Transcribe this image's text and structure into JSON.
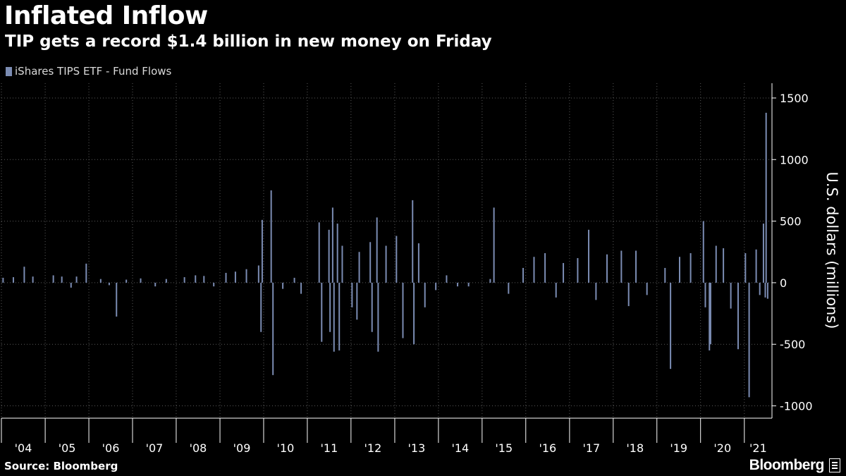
{
  "title": "Inflated Inflow",
  "subtitle": "TIP gets a record $1.4 billion in new money on Friday",
  "legend_label": "iShares TIPS ETF - Fund Flows",
  "source": "Source: Bloomberg",
  "logo_text": "Bloomberg",
  "colors": {
    "series": "#7b8cb3",
    "background": "#000000",
    "grid": "#5a5a5a",
    "text": "#ffffff"
  },
  "chart_data": {
    "type": "bar",
    "ylabel": "U.S. dollars (millions)",
    "ylim": [
      -1100,
      1620
    ],
    "xlim": [
      "2004-01-01",
      "2021-08-20"
    ],
    "y_ticks": [
      1500,
      1000,
      500,
      0,
      -500,
      -1000
    ],
    "y_tick_labels": [
      "1500",
      "1000",
      "500",
      "0",
      "-500",
      "-1000"
    ],
    "x_tick_labels": [
      "'04",
      "'05",
      "'06",
      "'07",
      "'08",
      "'09",
      "'10",
      "'11",
      "'12",
      "'13",
      "'14",
      "'15",
      "'16",
      "'17",
      "'18",
      "'19",
      "'20",
      "'21"
    ],
    "x_tick_dates": [
      "2004-01-01",
      "2005-01-01",
      "2006-01-01",
      "2007-01-01",
      "2008-01-01",
      "2009-01-01",
      "2010-01-01",
      "2011-01-01",
      "2012-01-01",
      "2013-01-01",
      "2014-01-01",
      "2015-01-01",
      "2016-01-01",
      "2017-01-01",
      "2018-01-01",
      "2019-01-01",
      "2020-01-01",
      "2021-01-01"
    ],
    "grid": true,
    "legend_position": "top-left",
    "series": [
      {
        "name": "iShares TIPS ETF - Fund Flows",
        "points": [
          [
            "2004-01-15",
            40
          ],
          [
            "2004-04-10",
            45
          ],
          [
            "2004-07-10",
            130
          ],
          [
            "2004-09-20",
            50
          ],
          [
            "2005-03-10",
            60
          ],
          [
            "2005-05-20",
            50
          ],
          [
            "2005-08-05",
            -40
          ],
          [
            "2005-09-20",
            50
          ],
          [
            "2005-12-10",
            155
          ],
          [
            "2006-04-10",
            30
          ],
          [
            "2006-06-20",
            -20
          ],
          [
            "2006-08-20",
            -275
          ],
          [
            "2006-11-10",
            25
          ],
          [
            "2007-03-10",
            35
          ],
          [
            "2007-07-10",
            -30
          ],
          [
            "2007-10-10",
            30
          ],
          [
            "2008-03-10",
            45
          ],
          [
            "2008-06-10",
            60
          ],
          [
            "2008-08-20",
            55
          ],
          [
            "2008-11-10",
            -30
          ],
          [
            "2009-02-20",
            80
          ],
          [
            "2009-05-10",
            90
          ],
          [
            "2009-08-10",
            110
          ],
          [
            "2009-11-20",
            140
          ],
          [
            "2009-12-10",
            -400
          ],
          [
            "2009-12-20",
            510
          ],
          [
            "2010-03-05",
            750
          ],
          [
            "2010-03-20",
            -750
          ],
          [
            "2010-06-10",
            -50
          ],
          [
            "2010-09-15",
            40
          ],
          [
            "2010-11-10",
            -90
          ],
          [
            "2011-04-10",
            490
          ],
          [
            "2011-05-01",
            -480
          ],
          [
            "2011-07-01",
            430
          ],
          [
            "2011-07-10",
            -400
          ],
          [
            "2011-08-01",
            610
          ],
          [
            "2011-08-12",
            -560
          ],
          [
            "2011-09-10",
            480
          ],
          [
            "2011-09-25",
            -550
          ],
          [
            "2011-10-20",
            300
          ],
          [
            "2012-01-10",
            -200
          ],
          [
            "2012-02-20",
            -300
          ],
          [
            "2012-03-10",
            250
          ],
          [
            "2012-06-10",
            330
          ],
          [
            "2012-06-25",
            -400
          ],
          [
            "2012-08-05",
            530
          ],
          [
            "2012-08-15",
            -560
          ],
          [
            "2012-10-20",
            300
          ],
          [
            "2013-01-15",
            380
          ],
          [
            "2013-03-10",
            -450
          ],
          [
            "2013-05-30",
            670
          ],
          [
            "2013-06-10",
            -500
          ],
          [
            "2013-07-20",
            320
          ],
          [
            "2013-09-10",
            -200
          ],
          [
            "2013-12-10",
            -60
          ],
          [
            "2014-03-10",
            60
          ],
          [
            "2014-06-10",
            -30
          ],
          [
            "2014-09-10",
            -30
          ],
          [
            "2015-03-10",
            30
          ],
          [
            "2015-04-10",
            610
          ],
          [
            "2015-08-10",
            -90
          ],
          [
            "2015-12-10",
            120
          ],
          [
            "2016-03-10",
            210
          ],
          [
            "2016-06-10",
            240
          ],
          [
            "2016-09-10",
            -120
          ],
          [
            "2016-11-10",
            160
          ],
          [
            "2017-03-10",
            200
          ],
          [
            "2017-06-10",
            430
          ],
          [
            "2017-08-10",
            -140
          ],
          [
            "2017-11-10",
            230
          ],
          [
            "2018-03-10",
            260
          ],
          [
            "2018-05-10",
            -190
          ],
          [
            "2018-07-10",
            260
          ],
          [
            "2018-10-10",
            -100
          ],
          [
            "2019-03-10",
            120
          ],
          [
            "2019-04-25",
            -700
          ],
          [
            "2019-07-10",
            210
          ],
          [
            "2019-10-10",
            240
          ],
          [
            "2020-01-25",
            500
          ],
          [
            "2020-02-10",
            -200
          ],
          [
            "2020-03-15",
            -550
          ],
          [
            "2020-03-25",
            -500
          ],
          [
            "2020-05-10",
            300
          ],
          [
            "2020-07-10",
            280
          ],
          [
            "2020-09-10",
            -210
          ],
          [
            "2020-11-10",
            -540
          ],
          [
            "2021-01-10",
            240
          ],
          [
            "2021-02-10",
            -930
          ],
          [
            "2021-04-10",
            270
          ],
          [
            "2021-05-10",
            -100
          ],
          [
            "2021-06-10",
            480
          ],
          [
            "2021-06-25",
            -120
          ],
          [
            "2021-07-02",
            1380
          ],
          [
            "2021-07-15",
            -130
          ]
        ]
      }
    ]
  }
}
